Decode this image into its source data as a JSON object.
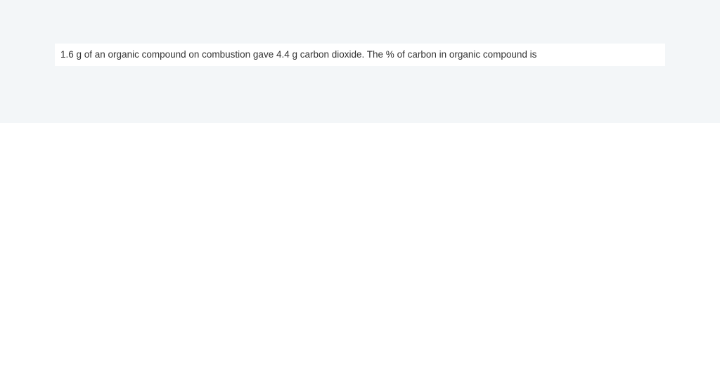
{
  "panel": {
    "background_color": "#f3f6f8",
    "question_background_color": "#ffffff"
  },
  "question": {
    "text": "1.6 g of an organic compound on combustion gave 4.4 g carbon dioxide. The % of carbon in organic compound is",
    "font_size": 13.5,
    "text_color": "#333333"
  }
}
